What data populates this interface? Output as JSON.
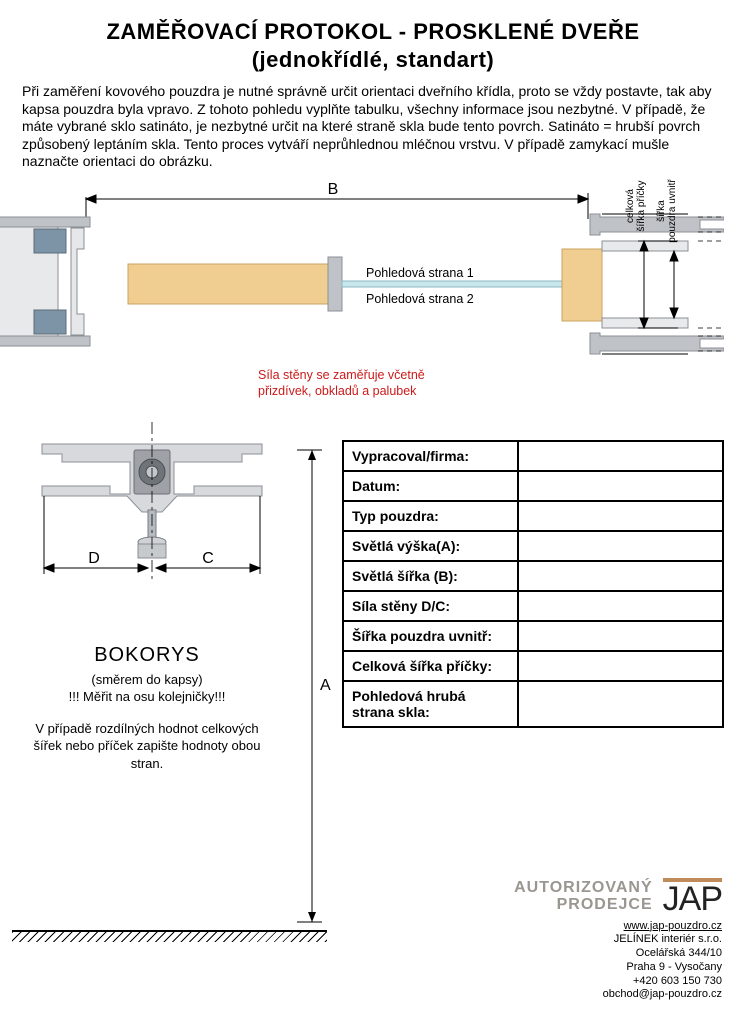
{
  "title_l1": "ZAMĚŘOVACÍ PROTOKOL - PROSKLENÉ DVEŘE",
  "title_l2": "(jednokřídlé, standart)",
  "intro": "Při zaměření kovového pouzdra je nutné správně určit orientaci dveřního křídla, proto se vždy postavte, tak aby kapsa pouzdra byla vpravo. Z tohoto pohledu vyplňte tabulku, všechny informace jsou nezbytné. V případě, že máte vybrané sklo satináto, je nezbytné určit na které straně skla bude tento povrch. Satináto = hrubší povrch způsobený leptáním skla. Tento proces vytváří neprůhlednou mléčnou vrstvu. V případě zamykací mušle naznačte orientaci do obrázku.",
  "top": {
    "dimB": "B",
    "side1": "Pohledová strana 1",
    "side2": "Pohledová strana 2",
    "vlabel1": "celková\nšířka příčky",
    "vlabel2": "šířka\npouzdra uvnitř",
    "note_l1": "Síla stěny se zaměřuje včetně",
    "note_l2": "přizdívek, obkladů a palubek",
    "colors": {
      "steel": "#bfc2c6",
      "steel_dark": "#8f9398",
      "wood": "#f0cd90",
      "glass": "#c7e7ec",
      "fill": "#e8e9ea"
    }
  },
  "cross": {
    "dimD": "D",
    "dimC": "C",
    "dimA": "A"
  },
  "bokorys": {
    "title": "BOKORYS",
    "sub": "(směrem do kapsy)",
    "warn": "!!! Měřit na osu kolejničky!!!",
    "note": "V případě rozdílných hodnot celkových šířek nebo příček zapište hodnoty obou stran."
  },
  "table": {
    "rows": [
      "Vypracoval/firma:",
      "Datum:",
      "Typ pouzdra:",
      "Světlá výška(A):",
      "Světlá šířka (B):",
      "Síla stěny D/C:",
      "Šířka pouzdra uvnitř:",
      "Celková šířka příčky:",
      "Pohledová hrubá strana skla:"
    ]
  },
  "footer": {
    "auth1": "AUTORIZOVANÝ",
    "auth2": "PRODEJCE",
    "brand": "JAP",
    "lines": [
      "www.jap-pouzdro.cz",
      "JELÍNEK interiér s.r.o.",
      "Ocelářská 344/10",
      "Praha 9 - Vysočany",
      "+420 603 150 730",
      "obchod@jap-pouzdro.cz"
    ]
  }
}
